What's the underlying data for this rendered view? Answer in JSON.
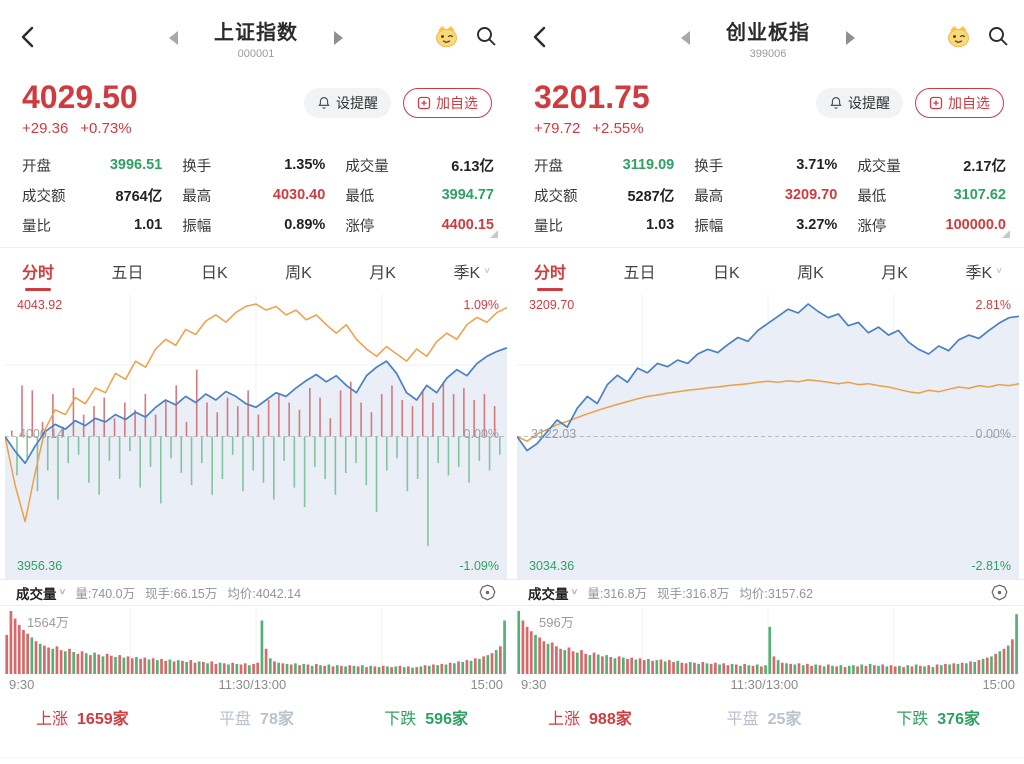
{
  "colors": {
    "red": "#cf3b3e",
    "green": "#2fa162",
    "dark": "#2b2b2b",
    "gray": "#999999",
    "flat_gray": "#b9c1cd",
    "orange": "#ee9f45",
    "blue": "#4a81c2",
    "blue_fill": "#e9eef7",
    "ad_red": "#d47a7f",
    "ad_green": "#82c49e",
    "vol_red": "#d66a6a",
    "vol_green": "#55b077"
  },
  "panels": [
    {
      "header": {
        "title": "上证指数",
        "code": "000001"
      },
      "price": {
        "value": "4029.50",
        "change": "+29.36",
        "change_pct": "+0.73%"
      },
      "actions": {
        "alert_label": "设提醒",
        "watch_label": "加自选"
      },
      "stats": [
        {
          "label": "开盘",
          "value": "3996.51",
          "color": "green"
        },
        {
          "label": "换手",
          "value": "1.35%",
          "color": "dark"
        },
        {
          "label": "成交量",
          "value": "6.13亿",
          "color": "dark"
        },
        {
          "label": "成交额",
          "value": "8764亿",
          "color": "dark"
        },
        {
          "label": "最高",
          "value": "4030.40",
          "color": "red"
        },
        {
          "label": "最低",
          "value": "3994.77",
          "color": "green"
        },
        {
          "label": "量比",
          "value": "1.01",
          "color": "dark"
        },
        {
          "label": "振幅",
          "value": "0.89%",
          "color": "dark"
        },
        {
          "label": "涨停",
          "value": "4400.15",
          "color": "red"
        }
      ],
      "tabs": [
        {
          "label": "分时",
          "active": true
        },
        {
          "label": "五日",
          "active": false
        },
        {
          "label": "日K",
          "active": false
        },
        {
          "label": "周K",
          "active": false
        },
        {
          "label": "月K",
          "active": false
        },
        {
          "label": "季K",
          "active": false,
          "dropdown": "˅"
        }
      ],
      "chart": {
        "type": "line",
        "high_label": "4043.92",
        "low_label": "3956.36",
        "pct_high": "1.09%",
        "pct_low": "-1.09%",
        "mid_left": "4000.14",
        "mid_right": "0.00%",
        "range": 1.09,
        "price": [
          0.0,
          -0.12,
          -0.22,
          -0.08,
          0.04,
          0.1,
          0.06,
          0.13,
          0.09,
          0.15,
          0.12,
          0.18,
          0.14,
          0.2,
          0.16,
          0.24,
          0.3,
          0.26,
          0.33,
          0.28,
          0.35,
          0.3,
          0.37,
          0.33,
          0.27,
          0.24,
          0.3,
          0.36,
          0.33,
          0.4,
          0.46,
          0.51,
          0.45,
          0.5,
          0.42,
          0.36,
          0.5,
          0.57,
          0.62,
          0.52,
          0.36,
          0.3,
          0.42,
          0.36,
          0.48,
          0.55,
          0.5,
          0.6,
          0.66,
          0.7,
          0.73
        ],
        "avg": [
          0.0,
          -0.4,
          -0.7,
          -0.3,
          0.06,
          0.22,
          0.18,
          0.32,
          0.27,
          0.4,
          0.36,
          0.52,
          0.47,
          0.62,
          0.57,
          0.72,
          0.8,
          0.75,
          0.88,
          0.84,
          0.95,
          1.0,
          0.94,
          1.02,
          1.07,
          1.09,
          1.04,
          1.07,
          1.0,
          1.04,
          0.96,
          1.0,
          0.92,
          0.85,
          0.92,
          0.8,
          0.72,
          0.66,
          0.74,
          0.68,
          0.62,
          0.72,
          0.66,
          0.78,
          0.85,
          0.8,
          0.92,
          0.98,
          0.94,
          1.02,
          1.06
        ],
        "ad_bars": [
          0.05,
          -0.32,
          0.42,
          -0.18,
          0.38,
          -0.45,
          0.12,
          -0.28,
          0.35,
          -0.52,
          0.08,
          -0.22,
          0.4,
          -0.15,
          0.18,
          -0.38,
          0.25,
          -0.48,
          0.32,
          -0.2,
          0.15,
          -0.35,
          0.28,
          -0.12,
          0.22,
          -0.42,
          0.35,
          -0.25,
          0.18,
          -0.55,
          0.3,
          -0.18,
          0.42,
          -0.3,
          0.12,
          -0.4,
          0.55,
          -0.22,
          0.28,
          -0.48,
          0.2,
          -0.35,
          0.32,
          -0.15,
          0.25,
          -0.45,
          0.38,
          -0.28,
          0.18,
          -0.38,
          0.3,
          -0.52,
          0.35,
          -0.2,
          0.28,
          -0.42,
          0.22,
          -0.58,
          0.4,
          -0.25,
          0.32,
          -0.35,
          0.15,
          -0.48,
          0.38,
          -0.3,
          0.45,
          -0.22,
          0.28,
          -0.4,
          0.2,
          -0.62,
          0.35,
          -0.28,
          0.42,
          -0.18,
          0.3,
          -0.45,
          0.25,
          -0.35,
          0.38,
          -0.9,
          0.28,
          -0.22,
          0.45,
          -0.32,
          0.35,
          -0.25,
          0.4,
          -0.38,
          0.3,
          -0.2,
          0.35,
          -0.28,
          0.25,
          -0.15
        ]
      },
      "vol_toolbar": {
        "name": "成交量",
        "vol": "量:740.0万",
        "hand": "现手:66.15万",
        "avg": "均价:4042.14"
      },
      "volume": {
        "max_label": "1564万",
        "axis": [
          "9:30",
          "11:30/13:00",
          "15:00"
        ],
        "bars": [
          62,
          100,
          88,
          78,
          70,
          64,
          -58,
          52,
          -48,
          45,
          42,
          -40,
          44,
          38,
          -36,
          40,
          -35,
          32,
          36,
          -33,
          30,
          -34,
          31,
          -28,
          32,
          29,
          -27,
          30,
          -26,
          28,
          25,
          -27,
          24,
          26,
          -23,
          25,
          -22,
          24,
          21,
          -23,
          20,
          -22,
          21,
          -19,
          22,
          18,
          -20,
          19,
          -17,
          20,
          16,
          -18,
          17,
          -15,
          18,
          -16,
          15,
          17,
          -14,
          16,
          18,
          -85,
          40,
          -25,
          20,
          -18,
          17,
          -16,
          15,
          -17,
          14,
          -16,
          15,
          -13,
          16,
          -14,
          13,
          -15,
          12,
          -14,
          13,
          -12,
          14,
          -13,
          12,
          -14,
          11,
          -13,
          12,
          -11,
          13,
          -12,
          11,
          -12,
          13,
          -11,
          12,
          -10,
          11,
          -12,
          14,
          -13,
          15,
          -14,
          16,
          -15,
          18,
          -17,
          20,
          -19,
          22,
          -21,
          25,
          -24,
          28,
          -30,
          33,
          -38,
          44,
          -85
        ]
      },
      "breadth": {
        "up_label": "上涨",
        "up": "1659家",
        "flat_label": "平盘",
        "flat": "78家",
        "down_label": "下跌",
        "down": "596家"
      }
    },
    {
      "header": {
        "title": "创业板指",
        "code": "399006"
      },
      "price": {
        "value": "3201.75",
        "change": "+79.72",
        "change_pct": "+2.55%"
      },
      "actions": {
        "alert_label": "设提醒",
        "watch_label": "加自选"
      },
      "stats": [
        {
          "label": "开盘",
          "value": "3119.09",
          "color": "green"
        },
        {
          "label": "换手",
          "value": "3.71%",
          "color": "dark"
        },
        {
          "label": "成交量",
          "value": "2.17亿",
          "color": "dark"
        },
        {
          "label": "成交额",
          "value": "5287亿",
          "color": "dark"
        },
        {
          "label": "最高",
          "value": "3209.70",
          "color": "red"
        },
        {
          "label": "最低",
          "value": "3107.62",
          "color": "green"
        },
        {
          "label": "量比",
          "value": "1.03",
          "color": "dark"
        },
        {
          "label": "振幅",
          "value": "3.27%",
          "color": "dark"
        },
        {
          "label": "涨停",
          "value": "100000.0",
          "color": "red"
        }
      ],
      "tabs": [
        {
          "label": "分时",
          "active": true
        },
        {
          "label": "五日",
          "active": false
        },
        {
          "label": "日K",
          "active": false
        },
        {
          "label": "周K",
          "active": false
        },
        {
          "label": "月K",
          "active": false
        },
        {
          "label": "季K",
          "active": false,
          "dropdown": "˅"
        }
      ],
      "chart": {
        "type": "line",
        "high_label": "3209.70",
        "low_label": "3034.36",
        "pct_high": "2.81%",
        "pct_low": "-2.81%",
        "mid_left": "3122.03",
        "mid_right": "0.00%",
        "range": 2.81,
        "price": [
          0.0,
          -0.3,
          -0.15,
          0.1,
          0.35,
          0.2,
          0.6,
          0.85,
          0.7,
          1.1,
          1.3,
          1.15,
          1.45,
          1.35,
          1.55,
          1.48,
          1.62,
          1.55,
          1.75,
          1.85,
          1.78,
          1.95,
          2.1,
          2.02,
          2.25,
          2.4,
          2.55,
          2.7,
          2.62,
          2.81,
          2.65,
          2.52,
          2.6,
          2.35,
          2.42,
          2.2,
          2.32,
          2.15,
          2.25,
          2.0,
          1.85,
          1.75,
          1.92,
          1.82,
          2.05,
          2.15,
          2.08,
          2.25,
          2.4,
          2.52,
          2.55
        ],
        "avg": [
          0.0,
          -0.1,
          0.05,
          0.15,
          0.25,
          0.32,
          0.4,
          0.48,
          0.55,
          0.62,
          0.68,
          0.74,
          0.8,
          0.85,
          0.88,
          0.92,
          0.95,
          0.98,
          1.0,
          1.03,
          1.05,
          1.08,
          1.1,
          1.12,
          1.15,
          1.17,
          1.15,
          1.18,
          1.16,
          1.2,
          1.18,
          1.15,
          1.12,
          1.15,
          1.1,
          1.12,
          1.08,
          1.05,
          1.0,
          0.95,
          0.92,
          0.98,
          0.95,
          1.0,
          1.05,
          1.02,
          1.08,
          1.05,
          1.1,
          1.08,
          1.12
        ],
        "ad_bars": null
      },
      "vol_toolbar": {
        "name": "成交量",
        "vol": "量:316.8万",
        "hand": "现手:316.8万",
        "avg": "均价:3157.62"
      },
      "volume": {
        "max_label": "596万",
        "axis": [
          "9:30",
          "11:30/13:00",
          "15:00"
        ],
        "bars": [
          -100,
          85,
          75,
          68,
          -62,
          58,
          52,
          -48,
          50,
          44,
          40,
          -38,
          42,
          36,
          -34,
          38,
          32,
          -30,
          34,
          -31,
          28,
          -30,
          27,
          -25,
          28,
          -26,
          24,
          26,
          -23,
          25,
          22,
          -24,
          21,
          -22,
          23,
          -20,
          22,
          19,
          -21,
          18,
          17,
          -19,
          18,
          -16,
          19,
          -17,
          16,
          18,
          -15,
          17,
          14,
          -16,
          15,
          -13,
          16,
          -14,
          13,
          -15,
          12,
          -14,
          -75,
          28,
          -22,
          18,
          -17,
          16,
          -15,
          17,
          -14,
          16,
          13,
          -15,
          14,
          -12,
          15,
          -13,
          12,
          -14,
          11,
          -13,
          -14,
          12,
          -15,
          13,
          -16,
          14,
          -13,
          15,
          -12,
          14,
          12,
          -13,
          11,
          -14,
          12,
          -15,
          13,
          -12,
          14,
          -11,
          15,
          -14,
          16,
          -15,
          17,
          -16,
          18,
          -17,
          20,
          -19,
          22,
          -24,
          26,
          -28,
          32,
          -36,
          40,
          -45,
          55,
          -95
        ]
      },
      "breadth": {
        "up_label": "上涨",
        "up": "988家",
        "flat_label": "平盘",
        "flat": "25家",
        "down_label": "下跌",
        "down": "376家"
      }
    }
  ]
}
